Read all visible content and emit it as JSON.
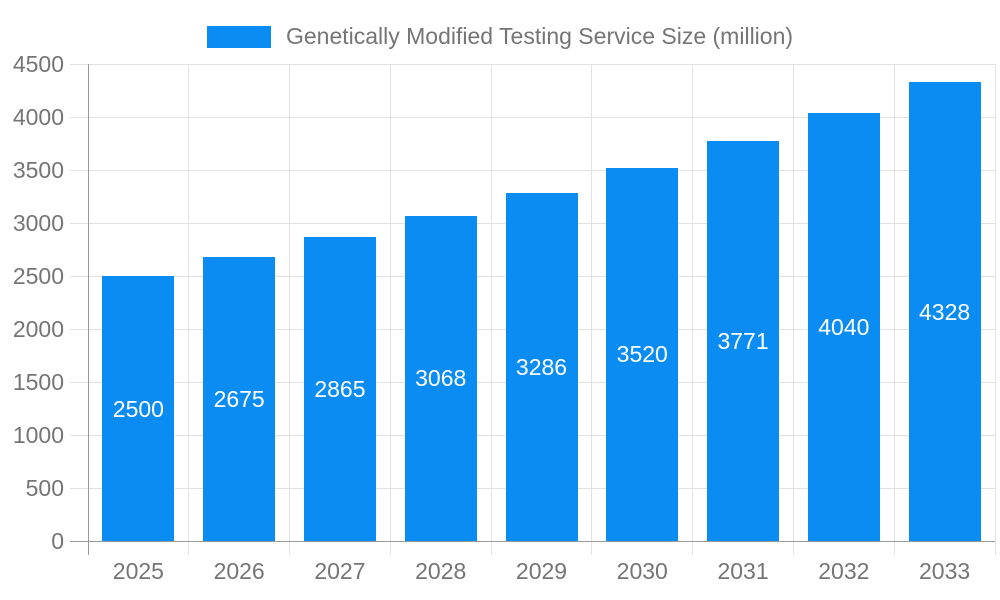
{
  "legend": {
    "label": "Genetically Modified Testing Service Size (million)"
  },
  "colors": {
    "bar": "#0b8cf2",
    "axis_label": "#757575",
    "axis_line": "#999999",
    "gridline": "#e2e2e2",
    "value_label": "#ffffff",
    "background": "#ffffff"
  },
  "chart_data": {
    "type": "bar",
    "title": "",
    "series_name": "Genetically Modified Testing Service Size (million)",
    "categories": [
      "2025",
      "2026",
      "2027",
      "2028",
      "2029",
      "2030",
      "2031",
      "2032",
      "2033"
    ],
    "values": [
      2500,
      2675,
      2865,
      3068,
      3286,
      3520,
      3771,
      4040,
      4328
    ],
    "xlabel": "",
    "ylabel": "",
    "ylim": [
      0,
      4500
    ],
    "ytick_step": 500,
    "yticks": [
      0,
      500,
      1000,
      1500,
      2000,
      2500,
      3000,
      3500,
      4000,
      4500
    ],
    "grid": true,
    "legend_position": "top",
    "bar_labels": "inside-centered"
  }
}
